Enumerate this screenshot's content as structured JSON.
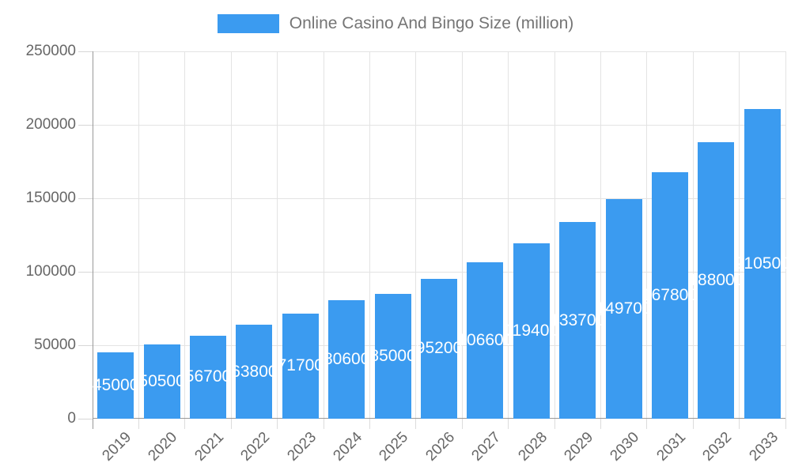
{
  "legend": {
    "label": "Online Casino And Bingo Size (million)",
    "color": "#3b9bf0"
  },
  "chart_data": {
    "type": "bar",
    "title": "Online Casino And Bingo Size (million)",
    "categories": [
      "2019",
      "2020",
      "2021",
      "2022",
      "2023",
      "2024",
      "2025",
      "2026",
      "2027",
      "2028",
      "2029",
      "2030",
      "2031",
      "2032",
      "2033"
    ],
    "values": [
      45000,
      50500,
      56700,
      63800,
      71700,
      80600,
      85000,
      95200,
      106600,
      119400,
      133700,
      149700,
      167800,
      188000,
      210500
    ],
    "xlabel": "",
    "ylabel": "",
    "ylim": [
      0,
      250000
    ],
    "yticks": [
      0,
      50000,
      100000,
      150000,
      200000,
      250000
    ],
    "ytick_labels": [
      "0",
      "50000",
      "100000",
      "150000",
      "200000",
      "250000"
    ],
    "grid": true,
    "legend_position": "top",
    "bar_color": "#3b9bf0",
    "value_label_color": "#ffffff",
    "axis_label_color": "#666666",
    "grid_color": "#e3e3e3",
    "axis_line_color": "#999999"
  }
}
